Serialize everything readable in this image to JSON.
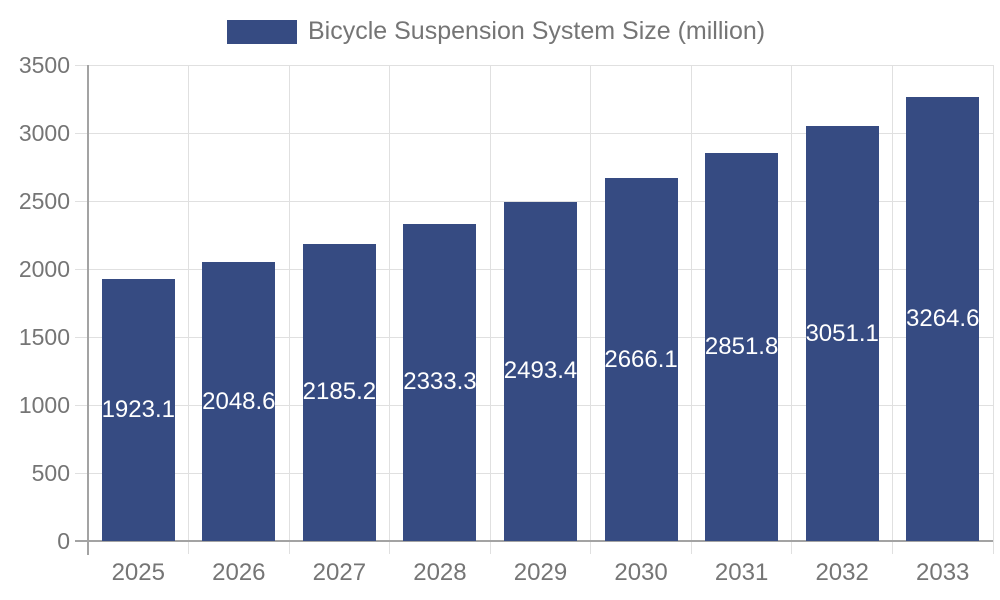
{
  "legend": {
    "label": "Bicycle Suspension System Size (million)"
  },
  "colors": {
    "bar": "#364b82",
    "axis_text": "#757575",
    "legend_text": "#757575",
    "grid_line": "#e0e0e0",
    "axis_line": "#a3a3a3",
    "bar_label_text": "#ffffff",
    "background": "#ffffff"
  },
  "chart_data": {
    "type": "bar",
    "title": "Bicycle Suspension System Size (million)",
    "categories": [
      "2025",
      "2026",
      "2027",
      "2028",
      "2029",
      "2030",
      "2031",
      "2032",
      "2033"
    ],
    "values": [
      1923.1,
      2048.6,
      2185.2,
      2333.3,
      2493.4,
      2666.1,
      2851.8,
      3051.1,
      3264.6
    ],
    "series_name": "Bicycle Suspension System Size (million)",
    "xlabel": "",
    "ylabel": "",
    "ylim": [
      0,
      3500
    ],
    "yticks": [
      0,
      500,
      1000,
      1500,
      2000,
      2500,
      3000,
      3500
    ],
    "grid": true,
    "legend_position": "top",
    "bar_label_position": "inside-center"
  }
}
